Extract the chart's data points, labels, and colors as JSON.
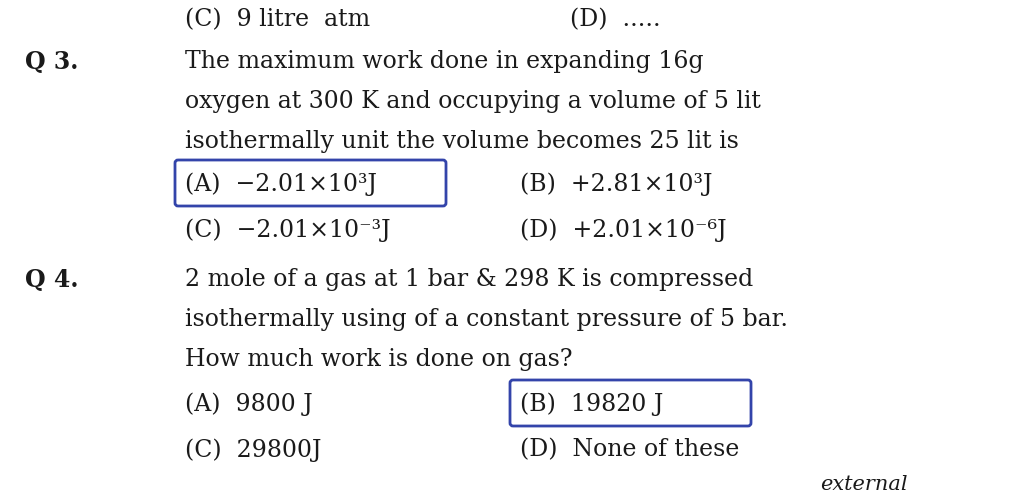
{
  "bg_color": "#ffffff",
  "text_color": "#1a1a1a",
  "box_color": "#3344aa",
  "q3_label": "Q 3.",
  "q3_line1": "The maximum work done in expanding 16g",
  "q3_line2": "oxygen at 300 K and occupying a volume of 5 lit",
  "q3_line3": "isothermally unit the volume becomes 25 lit is",
  "q3_A": "(A)  −2.01×10³J",
  "q3_B": "(B)  +2.81×10³J",
  "q3_C": "(C)  −2.01×10⁻³J",
  "q3_D": "(D)  +2.01×10⁻⁶J",
  "q4_label": "Q 4.",
  "q4_line1": "2 mole of a gas at 1 bar & 298 K is compressed",
  "q4_line2": "isothermally using of a constant pressure of 5 bar.",
  "q4_line3": "How much work is done on gas?",
  "q4_A": "(A)  9800 J",
  "q4_B": "(B)  19820 J",
  "q4_C": "(C)  29800J",
  "q4_D": "(D)  None of these",
  "top_partial_left": "(C)  9 litre  atm",
  "top_partial_right": "(D)  .....",
  "bottom_text": "external",
  "font_size": 17
}
